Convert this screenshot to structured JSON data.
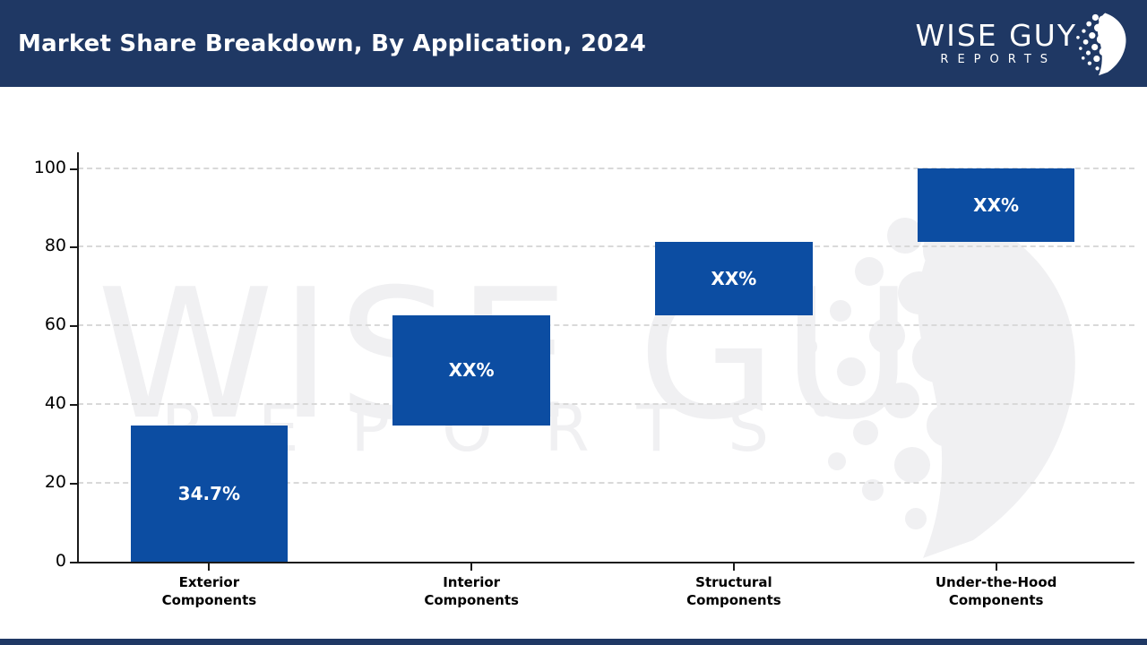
{
  "header": {
    "title": "Market Share Breakdown, By Application, 2024",
    "bg_color": "#1f3864",
    "logo": {
      "line1": "WISE GUY",
      "line2": "REPORTS"
    }
  },
  "watermark": {
    "line1": "WISE GUY",
    "line2": "REPORTS"
  },
  "footer": {
    "bg_color": "#1f3864"
  },
  "chart_data": {
    "type": "bar",
    "variant": "waterfall",
    "title": "Market Share Breakdown, By Application, 2024",
    "categories": [
      "Exterior Components",
      "Interior Components",
      "Structural Components",
      "Under-the-Hood Components"
    ],
    "category_display": [
      "Exterior\nComponents",
      "Interior\nComponents",
      "Structural\nComponents",
      "Under-the-Hood\nComponents"
    ],
    "segments": [
      {
        "category": "Exterior Components",
        "start": 0,
        "end": 34.7,
        "label": "34.7%"
      },
      {
        "category": "Interior Components",
        "start": 34.7,
        "end": 62.6,
        "label": "XX%"
      },
      {
        "category": "Structural Components",
        "start": 62.6,
        "end": 81.3,
        "label": "XX%"
      },
      {
        "category": "Under-the-Hood Components",
        "start": 81.3,
        "end": 100,
        "label": "XX%"
      }
    ],
    "values": [
      34.7,
      27.9,
      18.7,
      18.7
    ],
    "yticks": [
      0,
      20,
      40,
      60,
      80,
      100
    ],
    "ylim": [
      0,
      104
    ],
    "xlabel": "",
    "ylabel": "",
    "legend": "none",
    "grid": {
      "horizontal": true,
      "style": "dashed",
      "color": "#d9d9d9"
    },
    "colors": {
      "bar": "#0c4da2",
      "bar_label": "#ffffff",
      "axis": "#1a1a1a",
      "tick_label": "#000000",
      "watermark": "#f0f0f2"
    }
  }
}
